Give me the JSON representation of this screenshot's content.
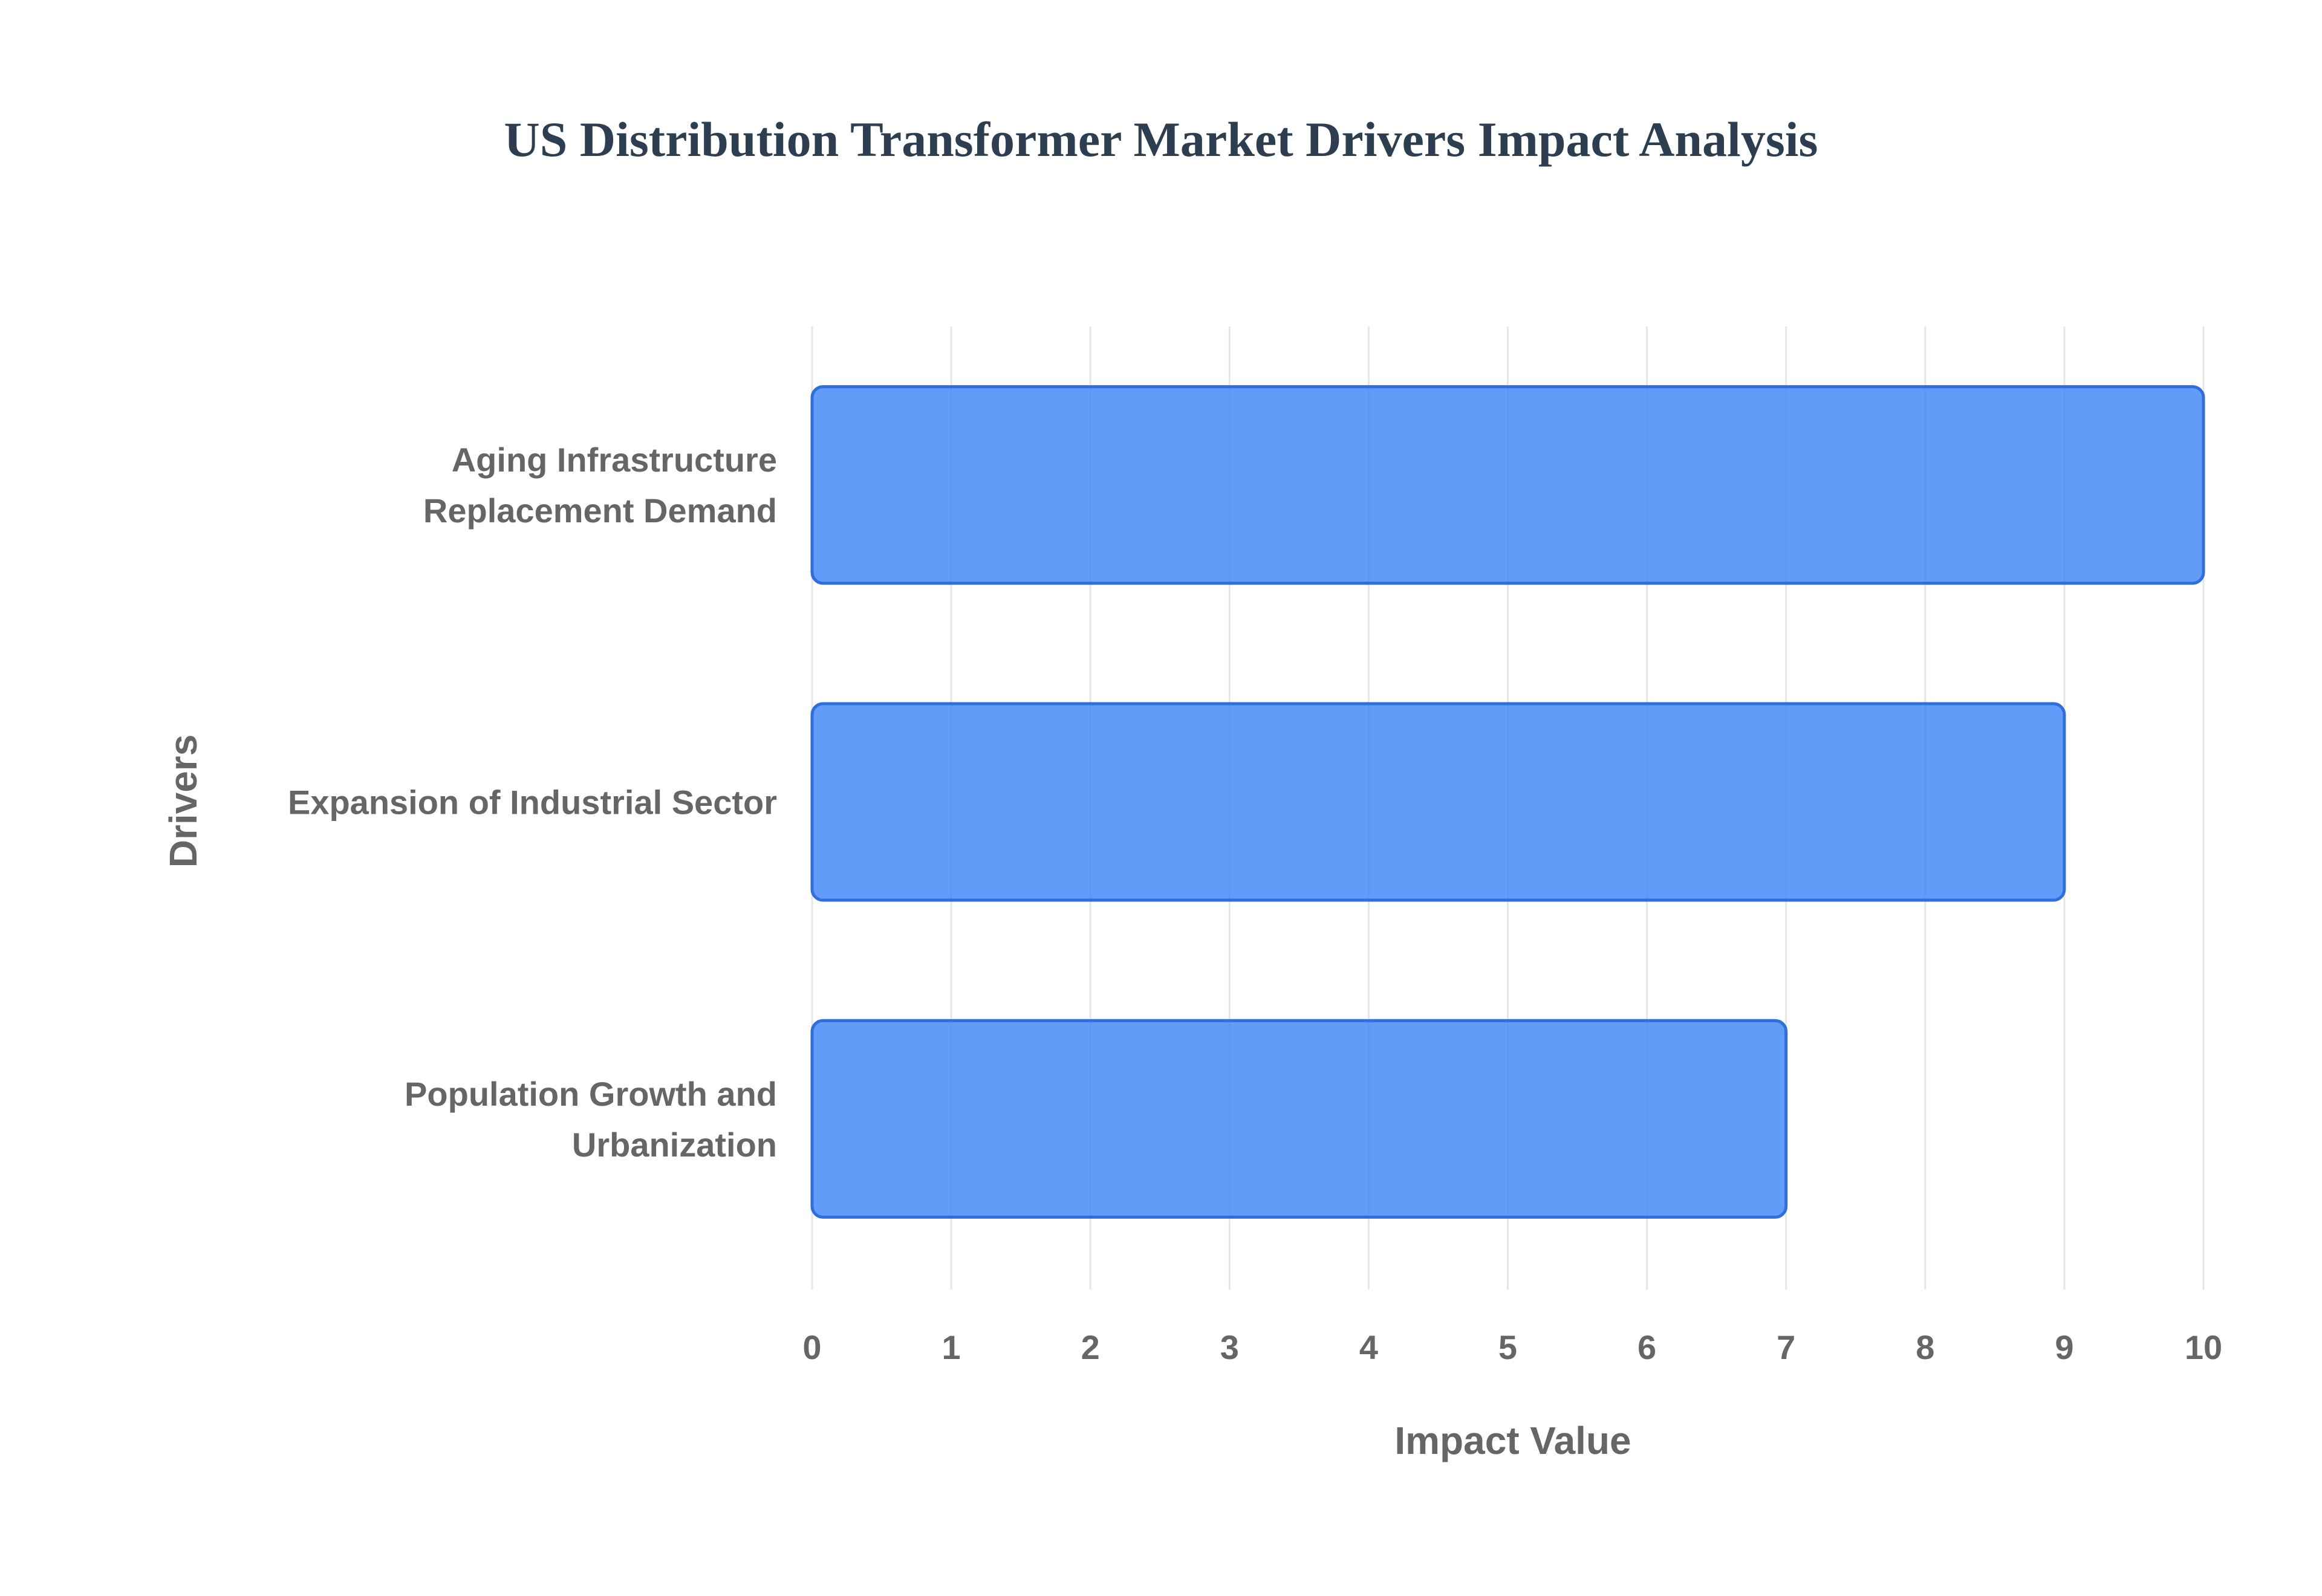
{
  "chart_data": {
    "type": "bar",
    "orientation": "horizontal",
    "title": "US Distribution Transformer Market Drivers Impact Analysis",
    "xlabel": "Impact Value",
    "ylabel": "Drivers",
    "categories": [
      [
        "Aging Infrastructure",
        "Replacement Demand"
      ],
      [
        "Expansion of Industrial Sector"
      ],
      [
        "Population Growth and",
        "Urbanization"
      ]
    ],
    "values": [
      10,
      9,
      7
    ],
    "xlim": [
      0,
      10
    ],
    "x_ticks": [
      "0",
      "1",
      "2",
      "3",
      "4",
      "5",
      "6",
      "7",
      "8",
      "9",
      "10"
    ],
    "grid": true,
    "legend": "none",
    "colors": {
      "bar_fill": "#3b82f6",
      "bar_stroke": "#2f6fdc",
      "title": "#2c3e50",
      "text": "#666666",
      "grid": "#e6e6e6"
    }
  }
}
